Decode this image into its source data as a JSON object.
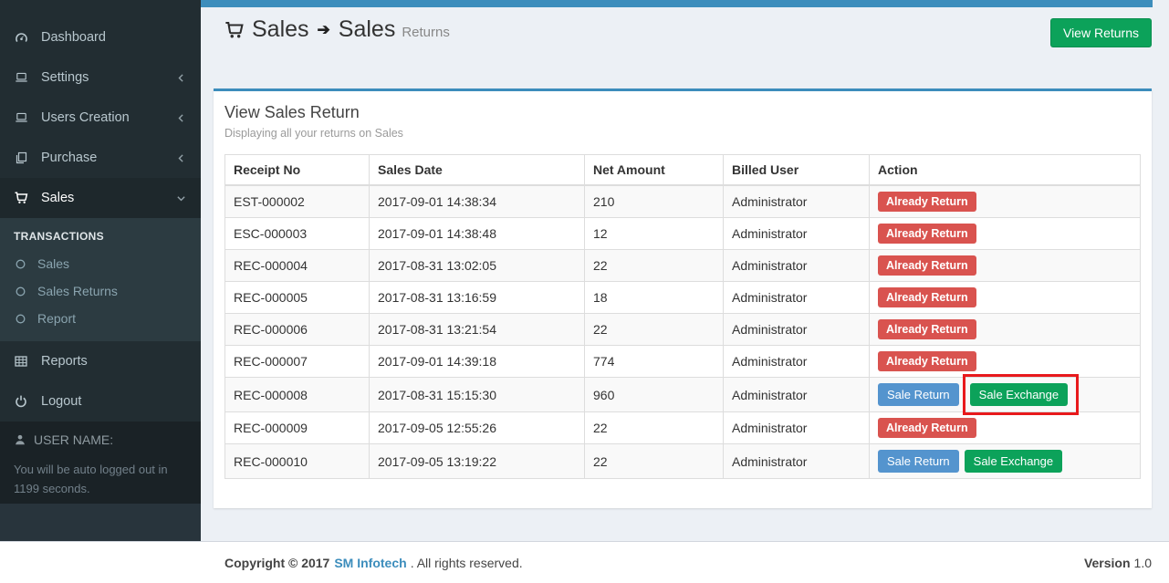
{
  "colors": {
    "accent_blue": "#3c8dbc",
    "success_green": "#0ca25a",
    "danger_red": "#d9534f",
    "action_blue": "#5494ce",
    "highlight_red": "#e8191c"
  },
  "sidebar": {
    "items_top": [
      {
        "label": "Dashboard",
        "icon": "gauge"
      },
      {
        "label": "Settings",
        "icon": "laptop",
        "chevron": "left"
      },
      {
        "label": "Users Creation",
        "icon": "laptop",
        "chevron": "left"
      },
      {
        "label": "Purchase",
        "icon": "copy",
        "chevron": "left"
      },
      {
        "label": "Sales",
        "icon": "cart",
        "chevron": "down",
        "active": true
      }
    ],
    "submenu_header": "TRANSACTIONS",
    "submenu": [
      {
        "label": "Sales",
        "icon": "circle"
      },
      {
        "label": "Sales Returns",
        "icon": "circle"
      },
      {
        "label": "Report",
        "icon": "circle"
      }
    ],
    "items_bottom": [
      {
        "label": "Reports",
        "icon": "grid"
      },
      {
        "label": "Logout",
        "icon": "power"
      }
    ],
    "user_panel": {
      "label": "USER NAME:",
      "note_line1": "You will be auto logged out in",
      "note_line2": "1199 seconds."
    }
  },
  "header": {
    "breadcrumb_primary": "Sales",
    "breadcrumb_arrow": "➔",
    "breadcrumb_secondary": "Sales",
    "breadcrumb_sub": "Returns",
    "view_returns_label": "View Returns"
  },
  "panel": {
    "title": "View Sales Return",
    "subtitle": "Displaying all your returns on Sales"
  },
  "table": {
    "columns": [
      "Receipt No",
      "Sales Date",
      "Net Amount",
      "Billed User",
      "Action"
    ],
    "rows": [
      {
        "receipt_no": "EST-000002",
        "sales_date": "2017-09-01 14:38:34",
        "net_amount": "210",
        "billed_user": "Administrator",
        "actions": [
          {
            "label": "Already Return",
            "style": "danger"
          }
        ]
      },
      {
        "receipt_no": "ESC-000003",
        "sales_date": "2017-09-01 14:38:48",
        "net_amount": "12",
        "billed_user": "Administrator",
        "actions": [
          {
            "label": "Already Return",
            "style": "danger"
          }
        ]
      },
      {
        "receipt_no": "REC-000004",
        "sales_date": "2017-08-31 13:02:05",
        "net_amount": "22",
        "billed_user": "Administrator",
        "actions": [
          {
            "label": "Already Return",
            "style": "danger"
          }
        ]
      },
      {
        "receipt_no": "REC-000005",
        "sales_date": "2017-08-31 13:16:59",
        "net_amount": "18",
        "billed_user": "Administrator",
        "actions": [
          {
            "label": "Already Return",
            "style": "danger"
          }
        ]
      },
      {
        "receipt_no": "REC-000006",
        "sales_date": "2017-08-31 13:21:54",
        "net_amount": "22",
        "billed_user": "Administrator",
        "actions": [
          {
            "label": "Already Return",
            "style": "danger"
          }
        ]
      },
      {
        "receipt_no": "REC-000007",
        "sales_date": "2017-09-01 14:39:18",
        "net_amount": "774",
        "billed_user": "Administrator",
        "actions": [
          {
            "label": "Already Return",
            "style": "danger"
          }
        ]
      },
      {
        "receipt_no": "REC-000008",
        "sales_date": "2017-08-31 15:15:30",
        "net_amount": "960",
        "billed_user": "Administrator",
        "actions": [
          {
            "label": "Sale Return",
            "style": "blue"
          },
          {
            "label": "Sale Exchange",
            "style": "green",
            "highlighted": true
          }
        ]
      },
      {
        "receipt_no": "REC-000009",
        "sales_date": "2017-09-05 12:55:26",
        "net_amount": "22",
        "billed_user": "Administrator",
        "actions": [
          {
            "label": "Already Return",
            "style": "danger"
          }
        ]
      },
      {
        "receipt_no": "REC-000010",
        "sales_date": "2017-09-05 13:19:22",
        "net_amount": "22",
        "billed_user": "Administrator",
        "actions": [
          {
            "label": "Sale Return",
            "style": "blue"
          },
          {
            "label": "Sale Exchange",
            "style": "green"
          }
        ]
      }
    ]
  },
  "footer": {
    "copyright_prefix": "Copyright © 2017",
    "company": "SM Infotech",
    "copyright_suffix": ". All rights reserved.",
    "version_label": "Version",
    "version_value": "1.0"
  }
}
